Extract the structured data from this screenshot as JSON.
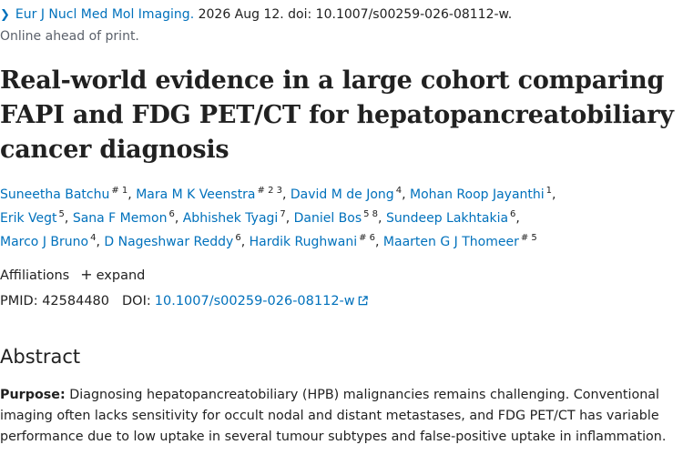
{
  "citation": {
    "journal": "Eur J Nucl Med Mol Imaging.",
    "details": " 2026 Aug 12. doi: 10.1007/s00259-026-08112-w.",
    "status": "Online ahead of print."
  },
  "title": "Real-world evidence in a large cohort comparing FAPI and FDG PET/CT for hepatopancreatobiliary cancer diagnosis",
  "authors": [
    {
      "name": "Suneetha Batchu",
      "sup": "# 1"
    },
    {
      "name": "Mara M K Veenstra",
      "sup": "# 2 3"
    },
    {
      "name": "David M de Jong",
      "sup": "4"
    },
    {
      "name": "Mohan Roop Jayanthi",
      "sup": "1"
    },
    {
      "name": "Erik Vegt",
      "sup": "5"
    },
    {
      "name": "Sana F Memon",
      "sup": "6"
    },
    {
      "name": "Abhishek Tyagi",
      "sup": "7"
    },
    {
      "name": "Daniel Bos",
      "sup": "5 8"
    },
    {
      "name": "Sundeep Lakhtakia",
      "sup": "6"
    },
    {
      "name": "Marco J Bruno",
      "sup": "4"
    },
    {
      "name": "D Nageshwar Reddy",
      "sup": "6"
    },
    {
      "name": "Hardik Rughwani",
      "sup": "# 6"
    },
    {
      "name": "Maarten G J Thomeer",
      "sup": "# 5"
    }
  ],
  "affiliations": {
    "label": "Affiliations",
    "expand": "expand"
  },
  "ids": {
    "pmid_label": "PMID:",
    "pmid": "42584480",
    "doi_label": "DOI:",
    "doi": "10.1007/s00259-026-08112-w"
  },
  "abstract": {
    "heading": "Abstract",
    "purpose_label": "Purpose:",
    "purpose_text": " Diagnosing hepatopancreatobiliary (HPB) malignancies remains challenging. Conventional imaging often lacks sensitivity for occult nodal and distant metastases, and FDG PET/CT has variable performance due to low uptake in several tumour subtypes and false-positive uptake in inflammation."
  }
}
